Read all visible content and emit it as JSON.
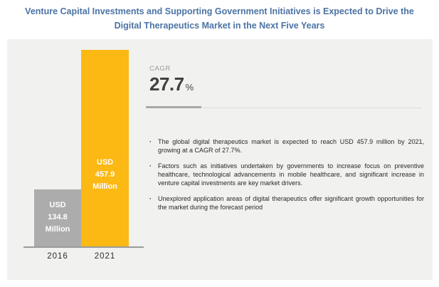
{
  "page": {
    "title_line1": "Venture Capital Investments and Supporting Government Initiatives is Expected to Drive the",
    "title_line2": "Digital Therapeutics Market in the Next Five Years"
  },
  "cagr": {
    "label": "CAGR",
    "value": "27.7",
    "unit": "%"
  },
  "chart": {
    "bars": [
      {
        "year": "2016",
        "label_lines": [
          "USD",
          "134.8",
          "Million"
        ]
      },
      {
        "year": "2021",
        "label_lines": [
          "USD",
          "457.9",
          "Million"
        ]
      }
    ]
  },
  "bullets": [
    "The global digital therapeutics market is expected to reach USD 457.9 million by 2021, growing at a CAGR of 27.7%.",
    "Factors such as initiatives undertaken by governments to increase focus on preventive healthcare, technological advancements in mobile healthcare, and significant increase in venture capital investments are key market drivers.",
    "Unexplored application areas of digital therapeutics offer significant growth opportunities for the market during the forecast period"
  ],
  "ui": {
    "bullet_glyph": "·"
  },
  "colors": {
    "title_text": "#4B73A5",
    "panel_background": "#F1F1EF",
    "bar_2016": "#ACACAC",
    "bar_2021": "#FCB813",
    "bar_label_text": "#FFFFFF",
    "axis_line": "#9B9B9B",
    "cagr_label": "#9A9A9A",
    "cagr_value": "#414141",
    "cagr_rule_fill": "#A8A8A8",
    "cagr_rule_track": "#DBDBDB",
    "body_text": "#2A2A2A"
  },
  "chart_data": {
    "type": "bar",
    "categories": [
      "2016",
      "2021"
    ],
    "values": [
      134.8,
      457.9
    ],
    "unit": "USD Million",
    "data_labels": [
      "USD 134.8 Million",
      "USD 457.9 Million"
    ],
    "bar_colors": [
      "#ACACAC",
      "#FCB813"
    ],
    "cagr_percent": 27.7,
    "title": "Venture Capital Investments and Supporting Government Initiatives is Expected to Drive the Digital Therapeutics Market in the Next Five Years",
    "xlabel": "",
    "ylabel": "",
    "ylim": [
      0,
      480
    ],
    "grid": false,
    "legend": false
  }
}
